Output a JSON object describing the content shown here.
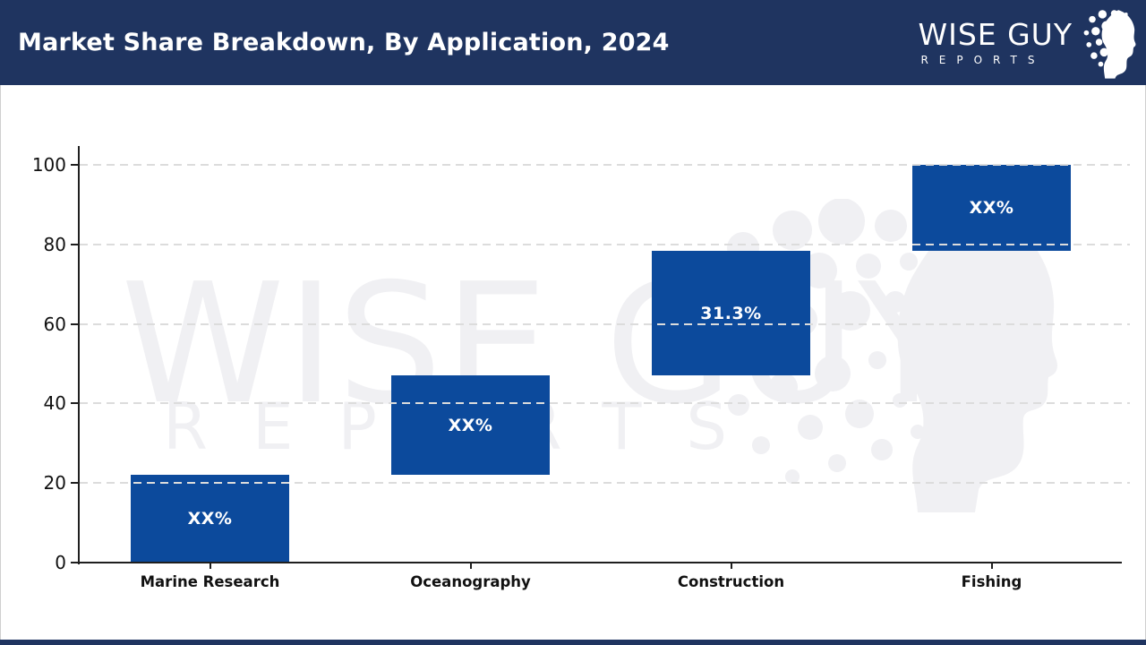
{
  "header": {
    "title": "Market Share Breakdown, By Application, 2024",
    "bg_color": "#1f3460",
    "logo": {
      "line1": "WISE GUY",
      "line2": "REPORTS"
    }
  },
  "watermark": {
    "line1": "WISE GUY",
    "line2": "REPORTS"
  },
  "chart_data": {
    "type": "bar",
    "subtype": "waterfall",
    "title": "Market Share Breakdown, By Application, 2024",
    "categories": [
      "Marine Research",
      "Oceanography",
      "Construction",
      "Fishing"
    ],
    "series": [
      {
        "name": "Market Share %",
        "segments": [
          {
            "category": "Marine Research",
            "start": 0,
            "end": 22,
            "label": "XX%"
          },
          {
            "category": "Oceanography",
            "start": 22,
            "end": 47,
            "label": "XX%"
          },
          {
            "category": "Construction",
            "start": 47,
            "end": 78.3,
            "label": "31.3%"
          },
          {
            "category": "Fishing",
            "start": 78.3,
            "end": 100,
            "label": "XX%"
          }
        ]
      }
    ],
    "xlabel": "",
    "ylabel": "",
    "ylim": [
      0,
      100
    ],
    "yticks": [
      0,
      20,
      40,
      60,
      80,
      100
    ],
    "grid": "horizontal-dashed",
    "legend": "none",
    "bar_color": "#0c4a9c",
    "bar_label_color": "#ffffff",
    "axis_color": "#1f1f1f",
    "gridline_color": "#dcdcdc"
  }
}
